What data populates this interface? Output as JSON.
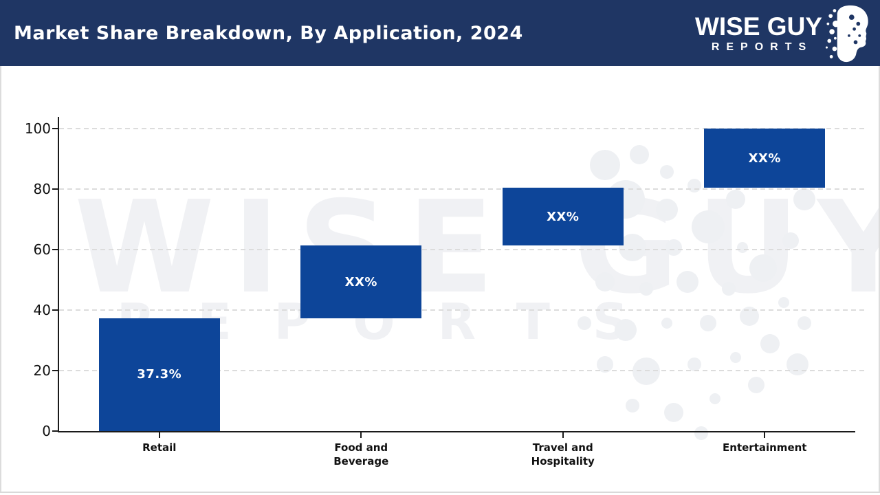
{
  "header": {
    "title": "Market Share Breakdown, By Application, 2024",
    "logo": {
      "line1": "WISE GUY",
      "line2": "REPORTS"
    }
  },
  "watermark": {
    "line1": "WISE GUY",
    "line2": "REPORTS"
  },
  "colors": {
    "header_bg": "#1f3664",
    "bar": "#0d4599",
    "bar_label": "#ffffff",
    "grid": "#dcdcdc",
    "axis": "#1a1a1a",
    "watermark": "#f0f1f4"
  },
  "chart_data": {
    "type": "bar",
    "subtype": "waterfall",
    "title": "Market Share Breakdown, By Application, 2024",
    "categories": [
      "Retail",
      "Food and Beverage",
      "Travel and Hospitality",
      "Entertainment"
    ],
    "segments": [
      {
        "category": "Retail",
        "start": 0,
        "end": 37.3,
        "label": "37.3%"
      },
      {
        "category": "Food and Beverage",
        "start": 37.3,
        "end": 61.3,
        "label": "XX%"
      },
      {
        "category": "Travel and Hospitality",
        "start": 61.3,
        "end": 80.4,
        "label": "XX%"
      },
      {
        "category": "Entertainment",
        "start": 80.4,
        "end": 100,
        "label": "XX%"
      }
    ],
    "y_ticks": [
      0,
      20,
      40,
      60,
      80,
      100
    ],
    "ylim": [
      0,
      100
    ],
    "xlabel": "",
    "ylabel": "",
    "grid": "horizontal-dashed",
    "legend": "none"
  }
}
